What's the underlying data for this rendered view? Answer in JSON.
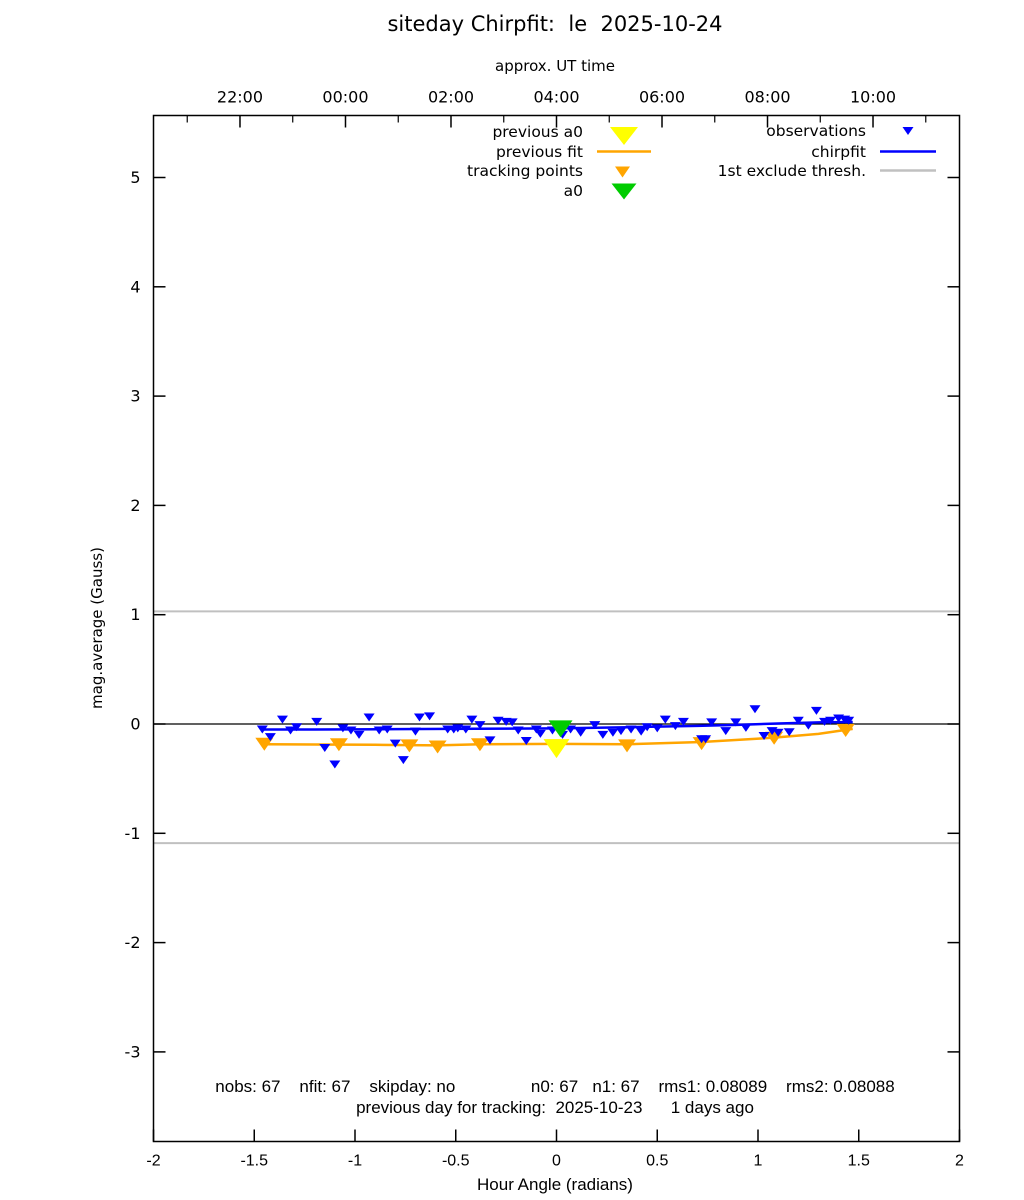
{
  "colors": {
    "blue": "#0000ff",
    "orange": "#ffa500",
    "yellow": "#ffff00",
    "green": "#00cc00",
    "gray": "#c0c0c0",
    "axis": "#000000"
  },
  "legend": {
    "previous_a0": "previous a0",
    "previous_fit": "previous fit",
    "tracking_points": "tracking points",
    "a0": "a0",
    "observations": "observations",
    "chirpfit": "chirpfit",
    "exclude": "1st exclude thresh."
  },
  "stats": {
    "line1": "nobs: 67    nfit: 67    skipday: no                n0: 67   n1: 67    rms1: 0.08089    rms2: 0.08088",
    "line2": "previous day for tracking:  2025-10-23      1 days ago"
  },
  "chart_data": {
    "type": "scatter",
    "title": "siteday Chirpfit:  le  2025-10-24",
    "x2label": "approx. UT time",
    "xlabel": "Hour Angle (radians)",
    "ylabel": "mag.average (Gauss)",
    "xlim": [
      -2,
      2
    ],
    "ylim": [
      -3.82,
      5.57
    ],
    "grid": false,
    "x_ticks": [
      -2,
      -1.5,
      -1,
      -0.5,
      0,
      0.5,
      1,
      1.5,
      2
    ],
    "x_tick_labels": [
      "-2",
      "-1.5",
      "-1",
      "-0.5",
      "0",
      "0.5",
      "1",
      "1.5",
      "2"
    ],
    "y_ticks": [
      -3,
      -2,
      -1,
      0,
      1,
      2,
      3,
      4,
      5
    ],
    "y_tick_labels": [
      "-3",
      "-2",
      "-1",
      "0",
      "1",
      "2",
      "3",
      "4",
      "5"
    ],
    "ut_major": {
      "labels": [
        "22:00",
        "00:00",
        "02:00",
        "04:00",
        "06:00",
        "08:00",
        "10:00"
      ],
      "hours_from_0rad": [
        -6,
        -4,
        -2,
        0,
        2,
        4,
        6
      ]
    },
    "ut_minor_hours": [
      -7,
      -5,
      -3,
      -1,
      1,
      3,
      5,
      7
    ],
    "zero_line_y": 0,
    "exclude_thresholds": [
      1.03,
      -1.09
    ],
    "series": {
      "observations": [
        [
          -1.46,
          -0.05
        ],
        [
          -1.42,
          -0.12
        ],
        [
          -1.36,
          0.04
        ],
        [
          -1.32,
          -0.06
        ],
        [
          -1.29,
          -0.03
        ],
        [
          -1.19,
          0.02
        ],
        [
          -1.15,
          -0.22
        ],
        [
          -1.1,
          -0.37
        ],
        [
          -1.06,
          -0.04
        ],
        [
          -1.02,
          -0.06
        ],
        [
          -0.98,
          -0.1
        ],
        [
          -0.93,
          0.06
        ],
        [
          -0.88,
          -0.06
        ],
        [
          -0.84,
          -0.05
        ],
        [
          -0.8,
          -0.18
        ],
        [
          -0.76,
          -0.33
        ],
        [
          -0.7,
          -0.07
        ],
        [
          -0.68,
          0.06
        ],
        [
          -0.63,
          0.07
        ],
        [
          -0.54,
          -0.05
        ],
        [
          -0.51,
          -0.05
        ],
        [
          -0.49,
          -0.04
        ],
        [
          -0.45,
          -0.05
        ],
        [
          -0.42,
          0.04
        ],
        [
          -0.38,
          -0.01
        ],
        [
          -0.33,
          -0.15
        ],
        [
          -0.29,
          0.03
        ],
        [
          -0.25,
          0.02
        ],
        [
          -0.22,
          0.015
        ],
        [
          -0.19,
          -0.06
        ],
        [
          -0.15,
          -0.155
        ],
        [
          -0.1,
          -0.05
        ],
        [
          -0.08,
          -0.09
        ],
        [
          -0.02,
          -0.06
        ],
        [
          0.03,
          -0.1
        ],
        [
          0.07,
          -0.05
        ],
        [
          0.12,
          -0.08
        ],
        [
          0.19,
          -0.01
        ],
        [
          0.23,
          -0.1
        ],
        [
          0.28,
          -0.08
        ],
        [
          0.32,
          -0.065
        ],
        [
          0.37,
          -0.05
        ],
        [
          0.42,
          -0.07
        ],
        [
          0.45,
          -0.03
        ],
        [
          0.5,
          -0.04
        ],
        [
          0.54,
          0.04
        ],
        [
          0.59,
          -0.02
        ],
        [
          0.63,
          0.02
        ],
        [
          0.72,
          -0.14
        ],
        [
          0.74,
          -0.14
        ],
        [
          0.77,
          0.015
        ],
        [
          0.84,
          -0.065
        ],
        [
          0.89,
          0.015
        ],
        [
          0.94,
          -0.035
        ],
        [
          0.985,
          0.135
        ],
        [
          1.03,
          -0.11
        ],
        [
          1.07,
          -0.065
        ],
        [
          1.1,
          -0.08
        ],
        [
          1.155,
          -0.075
        ],
        [
          1.2,
          0.03
        ],
        [
          1.25,
          -0.015
        ],
        [
          1.29,
          0.12
        ],
        [
          1.33,
          0.02
        ],
        [
          1.36,
          0.03
        ],
        [
          1.4,
          0.05
        ],
        [
          1.43,
          0.04
        ],
        [
          1.45,
          0.03
        ]
      ],
      "chirpfit": [
        [
          -1.455,
          -0.05
        ],
        [
          -1.2,
          -0.05
        ],
        [
          -0.8,
          -0.047
        ],
        [
          -0.4,
          -0.043
        ],
        [
          0,
          -0.04
        ],
        [
          0.4,
          -0.028
        ],
        [
          0.7,
          -0.017
        ],
        [
          0.9,
          -0.008
        ],
        [
          1.1,
          0.005
        ],
        [
          1.3,
          0.015
        ],
        [
          1.47,
          0.018
        ]
      ],
      "previous_fit": [
        [
          -1.45,
          -0.185
        ],
        [
          -1.2,
          -0.187
        ],
        [
          -0.9,
          -0.19
        ],
        [
          -0.59,
          -0.195
        ],
        [
          -0.38,
          -0.185
        ],
        [
          0,
          -0.182
        ],
        [
          0.35,
          -0.185
        ],
        [
          0.72,
          -0.165
        ],
        [
          1.08,
          -0.125
        ],
        [
          1.3,
          -0.09
        ],
        [
          1.47,
          -0.045
        ]
      ],
      "tracking_points": [
        [
          -1.45,
          -0.185
        ],
        [
          -1.08,
          -0.19
        ],
        [
          -0.73,
          -0.2
        ],
        [
          -0.59,
          -0.21
        ],
        [
          -0.38,
          -0.19
        ],
        [
          -0.005,
          -0.2
        ],
        [
          0.35,
          -0.2
        ],
        [
          0.72,
          -0.18
        ],
        [
          1.08,
          -0.13
        ],
        [
          1.435,
          -0.06
        ]
      ],
      "a0": [
        0.02,
        -0.045
      ],
      "previous_a0": [
        0.0,
        -0.225
      ]
    },
    "annotations": {
      "nobs": 67,
      "nfit": 67,
      "skipday": "no",
      "n0": 67,
      "n1": 67,
      "rms1": 0.08089,
      "rms2": 0.08088,
      "previous_day_for_tracking": "2025-10-23",
      "days_ago": 1
    }
  }
}
